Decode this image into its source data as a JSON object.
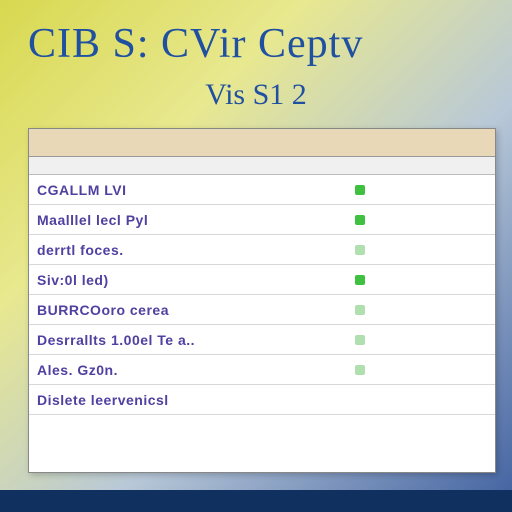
{
  "header": {
    "title": "CIB S: CVir Ceptv",
    "subtitle": "Vis S1 2"
  },
  "panel": {
    "subheader_text": "",
    "items": [
      {
        "label": "CGALLM LVI",
        "status": "green"
      },
      {
        "label": "Maalllel lecl Pyl",
        "status": "green"
      },
      {
        "label": "derrtl foces.",
        "status": "green-faded"
      },
      {
        "label": "Siv:0l led)",
        "status": "green"
      },
      {
        "label": "BURRCOoro cerea",
        "status": "green-faded"
      },
      {
        "label": "Desrrallts 1.00el Te a..",
        "status": "green-faded"
      },
      {
        "label": "Ales. Gz0n.",
        "status": "green-faded"
      },
      {
        "label": "Dislete leervenicsl",
        "status": "none"
      }
    ]
  },
  "colors": {
    "title_color": "#2050a0",
    "label_color": "#5040a0",
    "status_green": "#40c040",
    "status_faded": "#b0e0b0",
    "panel_header": "#e8d8b8",
    "bottom_bar": "#103060"
  }
}
